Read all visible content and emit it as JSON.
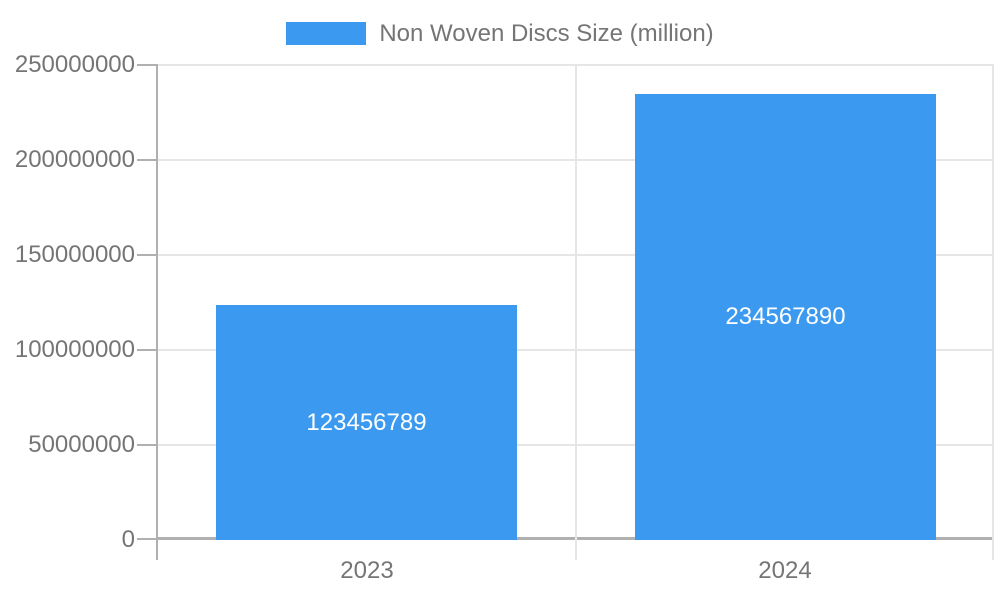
{
  "chart_data": {
    "type": "bar",
    "title": "",
    "legend": [
      "Non Woven Discs Size (million)"
    ],
    "legend_position": "top",
    "categories": [
      "2023",
      "2024"
    ],
    "series": [
      {
        "name": "Non Woven Discs Size (million)",
        "values": [
          123456789,
          234567890
        ]
      }
    ],
    "ylim": [
      0,
      250000000
    ],
    "ytick_interval": 50000000,
    "ytick_labels": [
      "250000000",
      "200000000",
      "150000000",
      "100000000",
      "50000000",
      "0"
    ],
    "grid": true,
    "colors": {
      "bar": "#3b9af0",
      "gridline": "#e6e6e6",
      "axis": "#b0b0b0",
      "text": "#757575",
      "value_label": "#ffffff",
      "background": "#ffffff"
    }
  }
}
